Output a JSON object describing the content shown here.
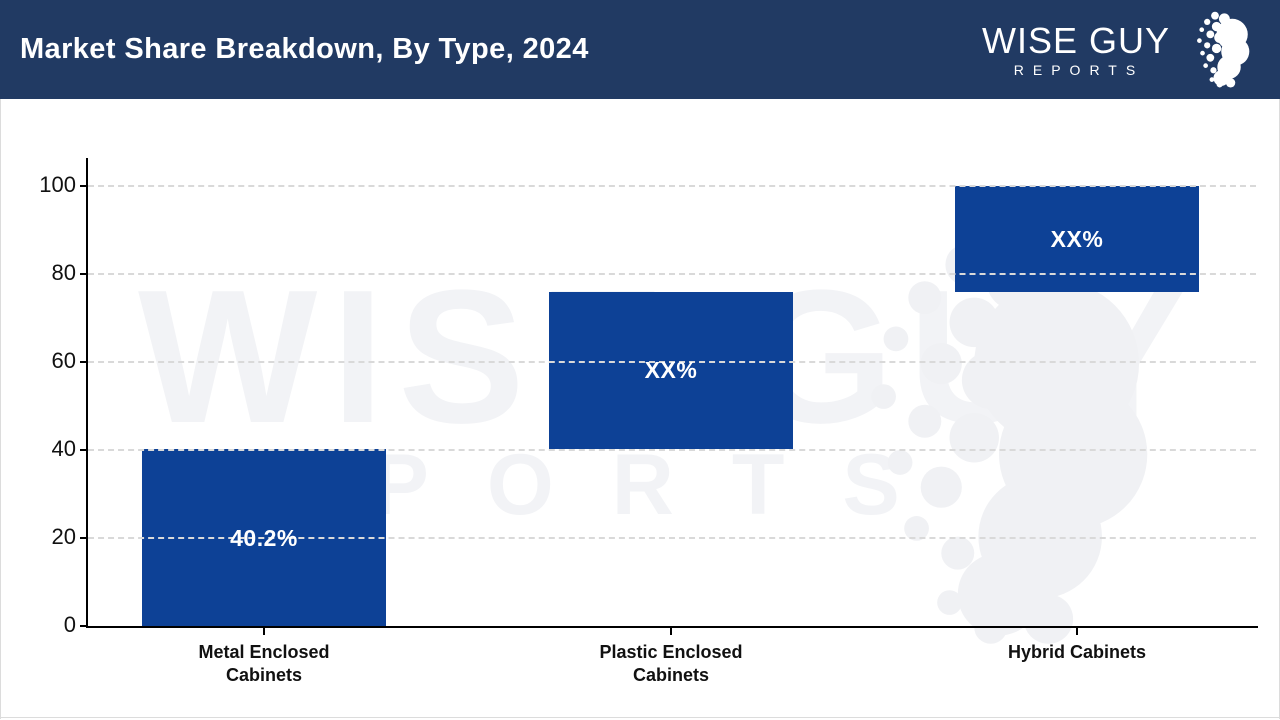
{
  "header": {
    "title": "Market Share Breakdown, By Type, 2024",
    "bg_color": "#213a63",
    "logo_line1": "WISE GUY",
    "logo_line2": "REPORTS"
  },
  "watermark": {
    "line1": "WISE GUY",
    "line2": "REPORTS"
  },
  "chart_data": {
    "type": "bar",
    "variant": "floating-segment-waterfall",
    "title": "Market Share Breakdown, By Type, 2024",
    "categories": [
      "Metal Enclosed Cabinets",
      "Plastic Enclosed Cabinets",
      "Hybrid Cabinets"
    ],
    "segments": [
      {
        "category": "Metal Enclosed Cabinets",
        "start": 0,
        "end": 40.2,
        "label": "40.2%"
      },
      {
        "category": "Plastic Enclosed Cabinets",
        "start": 40.2,
        "end": 76,
        "label": "XX%"
      },
      {
        "category": "Hybrid Cabinets",
        "start": 76,
        "end": 100,
        "label": "XX%"
      }
    ],
    "ylim": [
      0,
      100
    ],
    "yticks": [
      0,
      20,
      40,
      60,
      80,
      100
    ],
    "xlabel": "",
    "ylabel": "",
    "grid": "horizontal-dashed-over-bars",
    "legend": "none",
    "bar_color": "#0d4196",
    "bar_label_color": "#ffffff",
    "grid_color": "#d9d9d9",
    "axis_color": "#000000"
  }
}
